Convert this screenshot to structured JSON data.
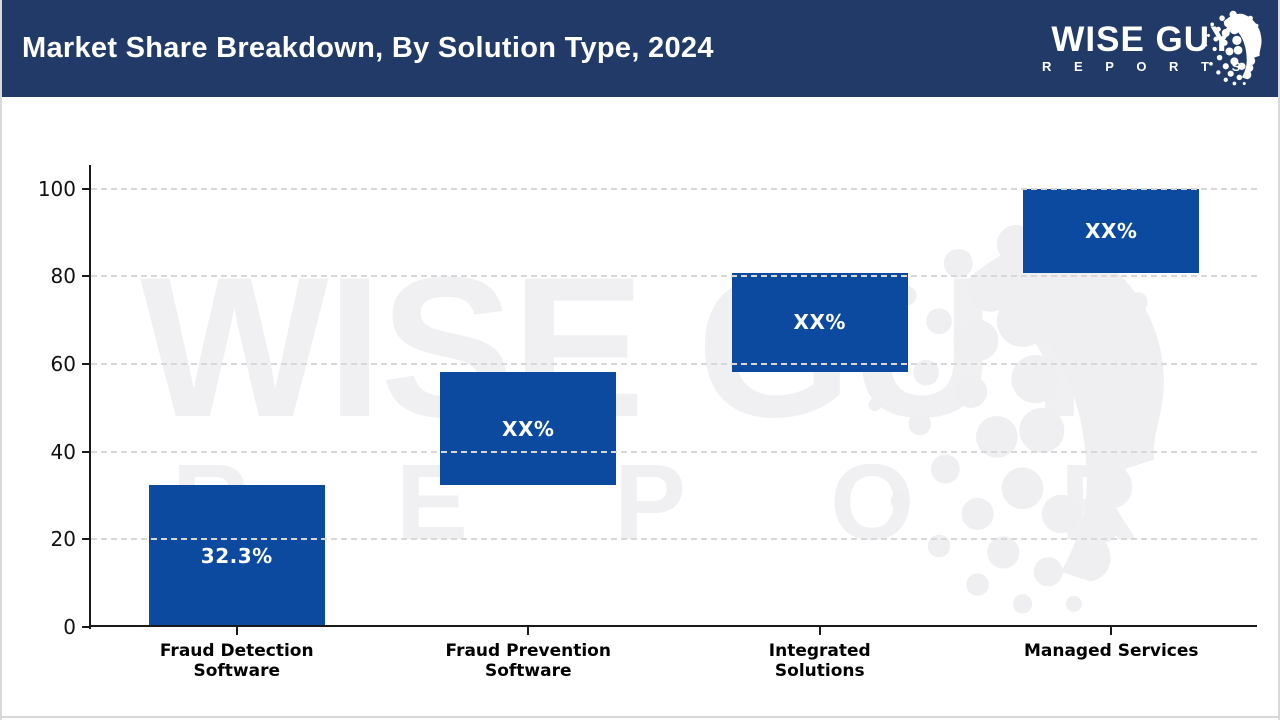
{
  "header": {
    "title": "Market Share Breakdown, By Solution Type, 2024",
    "bg_color": "#223A68",
    "logo": {
      "brand_line1": "WISE GUY",
      "brand_line2": "R E P O R T S"
    }
  },
  "watermark": {
    "line1": "WISE GUY",
    "line2": "R E P O R T S"
  },
  "chart_data": {
    "type": "bar",
    "variant": "waterfall",
    "title": "Market Share Breakdown, By Solution Type, 2024",
    "categories": [
      "Fraud Detection Software",
      "Fraud Prevention Software",
      "Integrated Solutions",
      "Managed Services"
    ],
    "segments": [
      {
        "category": "Fraud Detection Software",
        "label_lines": [
          "Fraud Detection",
          "Software"
        ],
        "start": 0,
        "end": 32.3,
        "value_label": "32.3%"
      },
      {
        "category": "Fraud Prevention Software",
        "label_lines": [
          "Fraud Prevention",
          "Software"
        ],
        "start": 32.3,
        "end": 58.2,
        "value_label": "XX%"
      },
      {
        "category": "Integrated Solutions",
        "label_lines": [
          "Integrated",
          "Solutions"
        ],
        "start": 58.2,
        "end": 80.7,
        "value_label": "XX%"
      },
      {
        "category": "Managed Services",
        "label_lines": [
          "Managed Services"
        ],
        "start": 80.7,
        "end": 100,
        "value_label": "XX%"
      }
    ],
    "yticks": [
      0,
      20,
      40,
      60,
      80,
      100
    ],
    "ylim": [
      0,
      105
    ],
    "xlabel": "",
    "ylabel": "",
    "legend": "none",
    "grid": {
      "horizontal": true,
      "style": "dashed",
      "color": "#D8D8DB"
    },
    "bar_color": "#0B4A9E",
    "bar_label_color": "#FFFFFF"
  },
  "colors": {
    "header_bg": "#223A68",
    "bar": "#0B4A9E",
    "grid": "#D8D8DB",
    "axis": "#1A1A1A",
    "watermark": "#F0F0F3",
    "title_text": "#FFFFFF"
  }
}
